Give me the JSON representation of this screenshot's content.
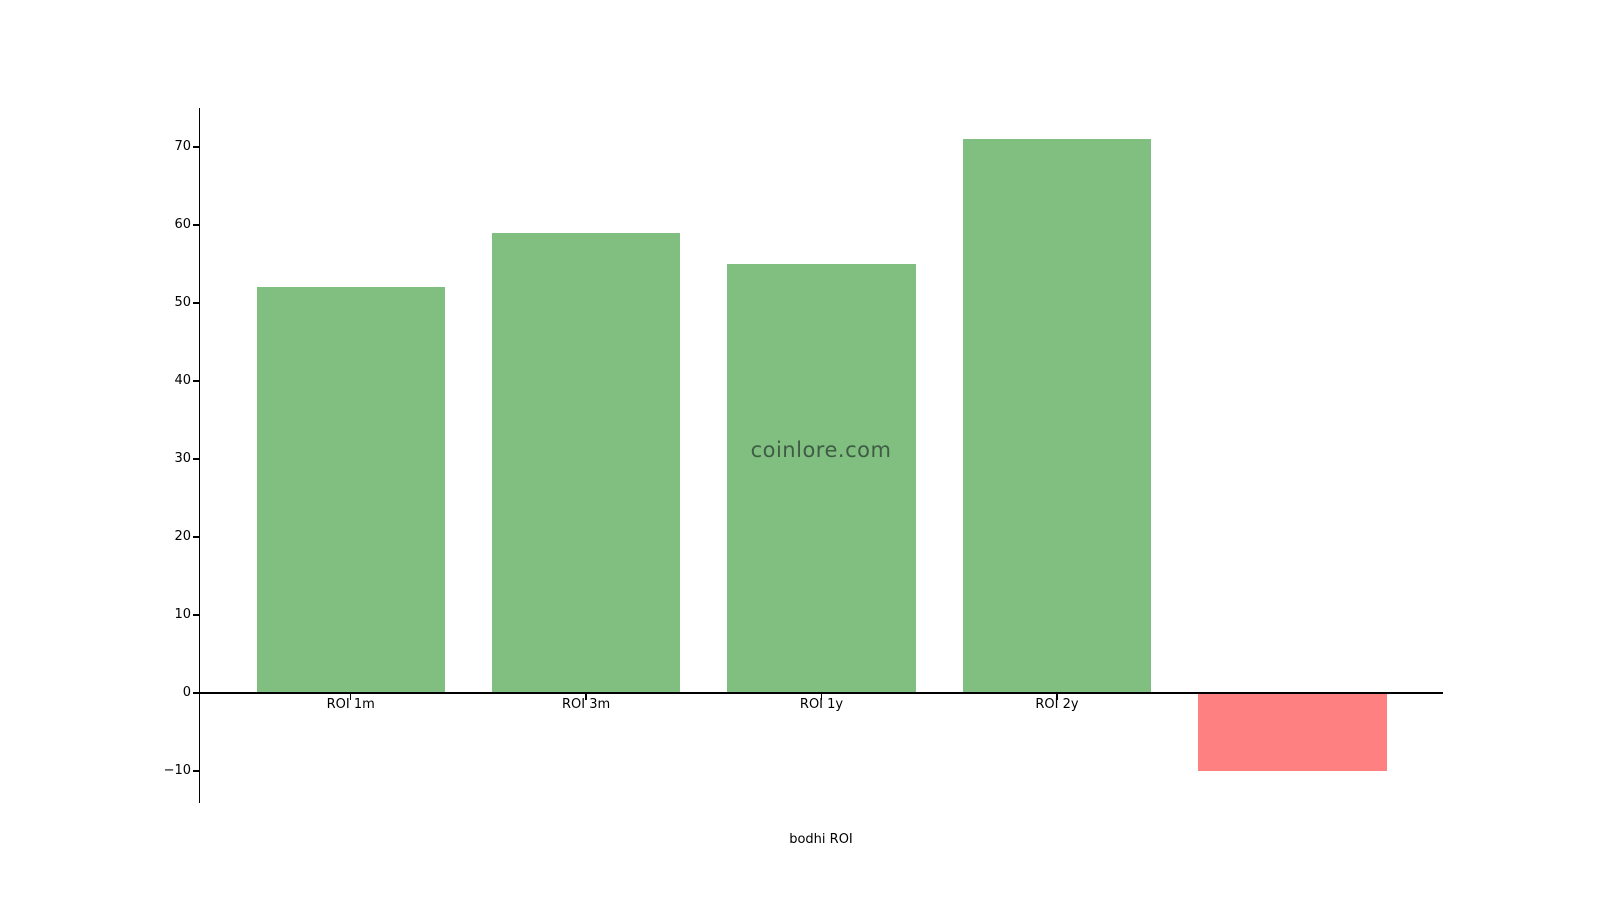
{
  "chart_data": {
    "type": "bar",
    "title": "",
    "xlabel": "bodhi ROI",
    "ylabel": "",
    "watermark": "coinlore.com",
    "categories": [
      "ROI 1m",
      "ROI 3m",
      "ROI 1y",
      "ROI 2y",
      ""
    ],
    "values": [
      52,
      59,
      55,
      71,
      -10
    ],
    "y_ticks": [
      70,
      60,
      50,
      40,
      30,
      20,
      10,
      0,
      -10
    ],
    "ylim": [
      -14.05,
      75.05
    ],
    "grid": false,
    "legend": "none",
    "colors": {
      "positive": "#80bf80",
      "negative": "#ff8080",
      "axis": "#000000",
      "text": "#000000",
      "watermark": "#3f5c45",
      "background": "#ffffff"
    }
  }
}
